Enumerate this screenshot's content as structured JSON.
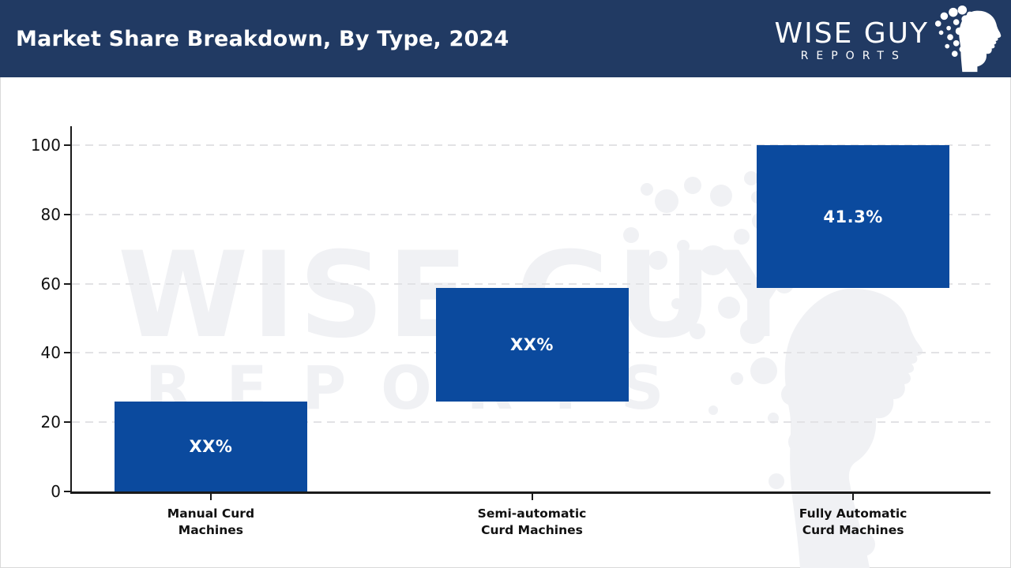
{
  "header": {
    "title": "Market Share Breakdown, By Type, 2024",
    "bg_color": "#213a63",
    "logo": {
      "line1": "WISE GUY",
      "line2": "REPORTS"
    }
  },
  "watermark": {
    "line1": "WISE GUY",
    "line2": "REPORTS"
  },
  "chart_data": {
    "type": "bar",
    "subtype": "waterfall",
    "title": "Market Share Breakdown, By Type, 2024",
    "xlabel": "",
    "ylabel": "",
    "categories": [
      [
        "Manual Curd",
        "Machines"
      ],
      [
        "Semi-automatic",
        "Curd Machines"
      ],
      [
        "Fully Automatic",
        "Curd Machines"
      ]
    ],
    "segments": [
      {
        "label": "XX%",
        "start": 0,
        "end": 26
      },
      {
        "label": "XX%",
        "start": 26,
        "end": 58.7
      },
      {
        "label": "41.3%",
        "start": 58.7,
        "end": 100
      }
    ],
    "y_ticks": [
      0,
      20,
      40,
      60,
      80,
      100
    ],
    "ylim": [
      0,
      106
    ],
    "grid": "horizontal-dashed",
    "bar_color": "#0b4a9e",
    "bar_label_color": "#ffffff",
    "axis_color": "#1a1a1a",
    "gridline_color": "#e2e2e5"
  }
}
